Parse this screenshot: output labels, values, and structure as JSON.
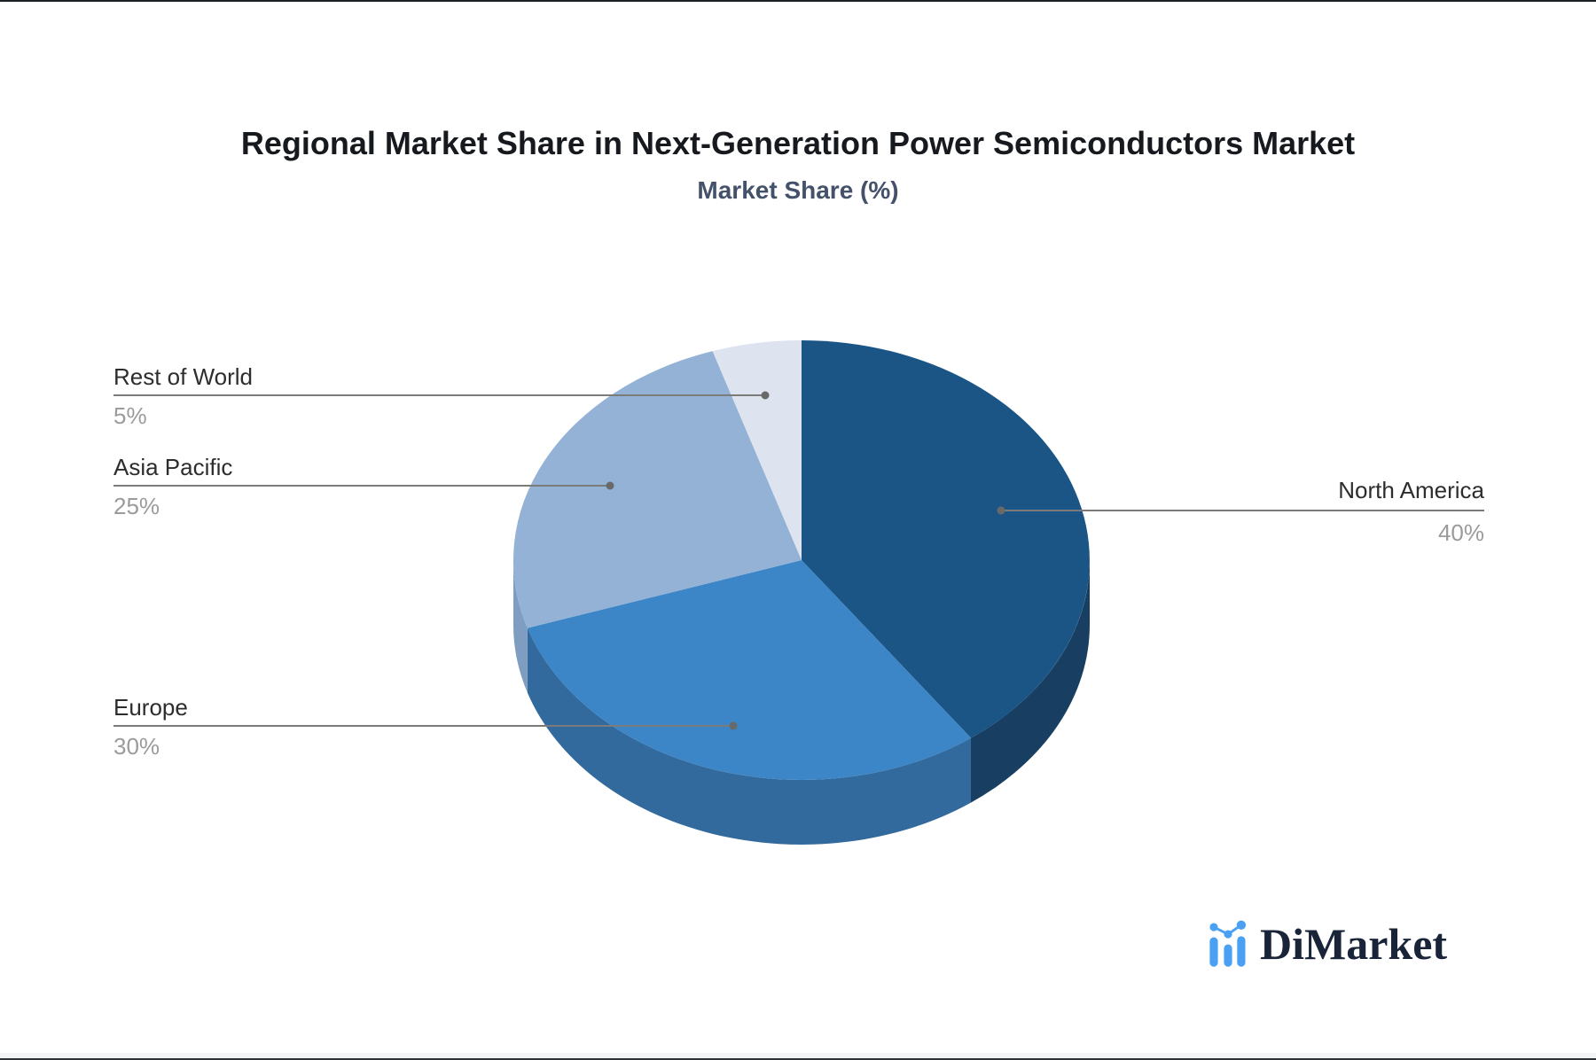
{
  "page": {
    "title": "Regional Market Share in Next-Generation Power Semiconductors Market",
    "subtitle": "Market Share (%)"
  },
  "chart_data": {
    "type": "pie",
    "style": "pie-3d",
    "title": "Regional Market Share in Next-Generation Power Semiconductors Market",
    "subtitle": "Market Share (%)",
    "unit": "%",
    "start_angle_deg": 0,
    "direction": "clockwise",
    "legend_position": "callout-labels",
    "slices": [
      {
        "label": "North America",
        "value": 40,
        "display": "40%",
        "color_top": "#1b5586",
        "color_side": "#183f62",
        "callout_side": "right"
      },
      {
        "label": "Europe",
        "value": 30,
        "display": "30%",
        "color_top": "#3c86c7",
        "color_side": "#336a9d",
        "callout_side": "left"
      },
      {
        "label": "Asia Pacific",
        "value": 25,
        "display": "25%",
        "color_top": "#93b2d5",
        "color_side": "#7e9dc1",
        "callout_side": "left"
      },
      {
        "label": "Rest of World",
        "value": 5,
        "display": "5%",
        "color_top": "#dde4ef",
        "color_side": "#c3cede",
        "callout_side": "left"
      }
    ],
    "leader_line_color": "#7b7b7b",
    "leader_dot_color": "#696969"
  },
  "branding": {
    "logo_text": "DiMarket",
    "logo_icon": "bar-line-chart-icon",
    "logo_icon_color": "#4aa0f2",
    "logo_text_color": "#1a2438"
  }
}
